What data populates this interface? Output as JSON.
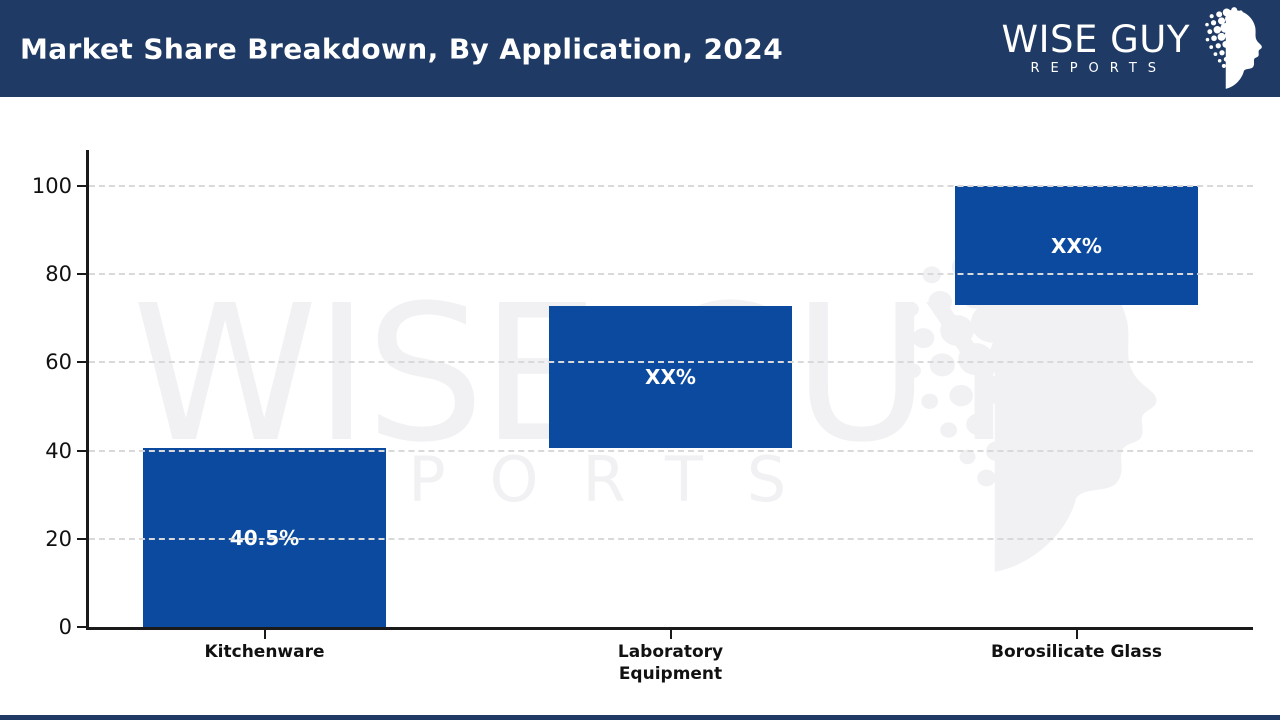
{
  "header": {
    "title": "Market Share Breakdown, By Application, 2024",
    "logo": {
      "line1": "WISE GUY",
      "line2": "REPORTS"
    }
  },
  "watermark": {
    "line1": "WISE GUY",
    "line2": "REPORTS"
  },
  "colors": {
    "header_bg": "#1F3A64",
    "footer_bg": "#1F3A64",
    "bar_fill": "#0B4A9F",
    "bar_label_text": "#FFFFFF",
    "grid_line": "#D9D9D9",
    "axis_line": "#1A1A1A",
    "tick_text": "#111111",
    "watermark_text": "#F1F1F4"
  },
  "chart_data": {
    "type": "bar",
    "subtype": "stacked-waterfall",
    "title": "Market Share Breakdown, By Application, 2024",
    "categories": [
      "Kitchenware",
      "Laboratory\nEquipment",
      "Borosilicate Glass"
    ],
    "bars": [
      {
        "category": "Kitchenware",
        "start": 0,
        "end": 40.5,
        "value": 40.5,
        "label": "40.5%"
      },
      {
        "category": "Laboratory Equipment",
        "start": 40.5,
        "end": 72.8,
        "value": 32.3,
        "label": "XX%"
      },
      {
        "category": "Borosilicate Glass",
        "start": 73,
        "end": 100,
        "value": 27,
        "label": "XX%"
      }
    ],
    "xlabel": "",
    "ylabel": "",
    "yticks": [
      0,
      20,
      40,
      60,
      80,
      100
    ],
    "ylim": [
      0,
      108
    ],
    "grid": {
      "axis": "y",
      "style": "dashed",
      "on": true,
      "above_bars": true
    },
    "legend": null
  }
}
